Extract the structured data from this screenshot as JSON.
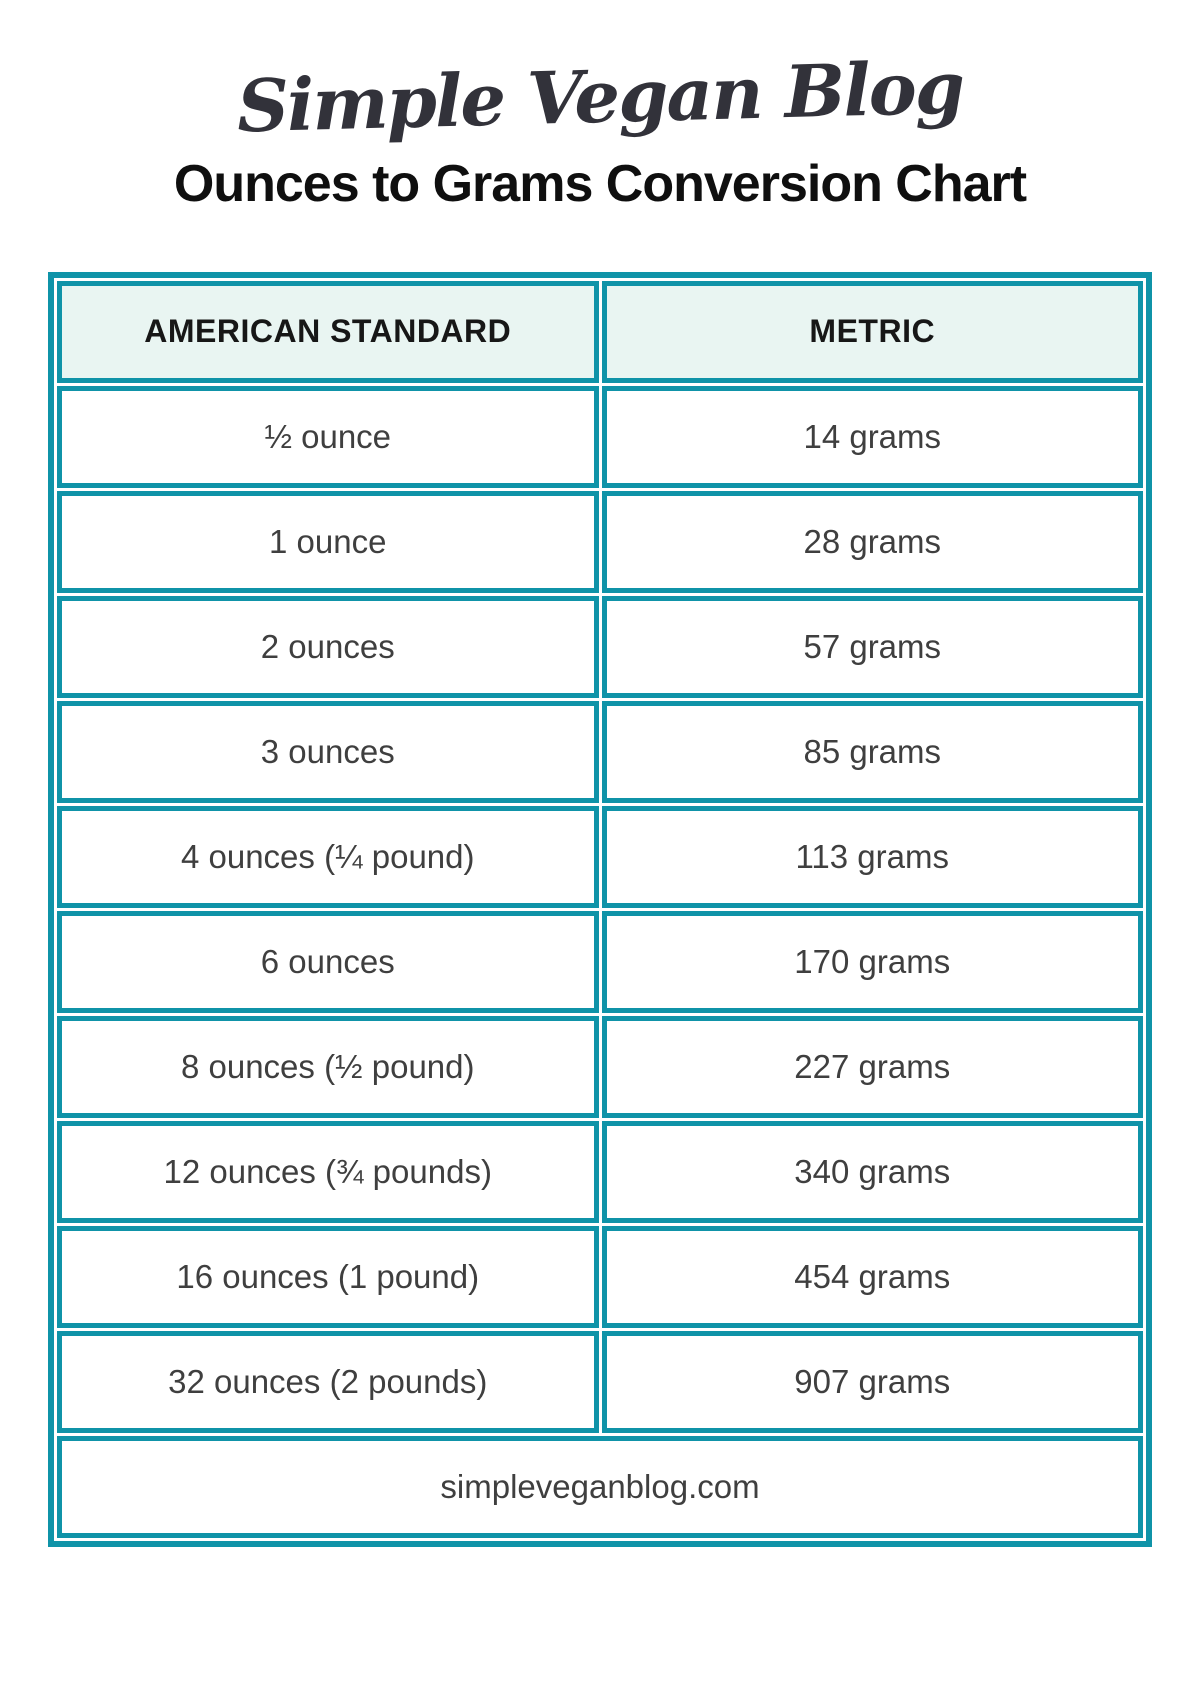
{
  "logo": {
    "text": "Simple Vegan Blog"
  },
  "title": "Ounces to Grams Conversion Chart",
  "colors": {
    "teal": "#0f93a8",
    "header_bg": "#e9f5f2",
    "row_text": "#3f3f3f",
    "title_text": "#0f0f0f",
    "logo_text": "#32323a"
  },
  "table": {
    "headers": [
      "AMERICAN STANDARD",
      "METRIC"
    ],
    "rows": [
      {
        "us": "½ ounce",
        "metric": "14 grams"
      },
      {
        "us": "1 ounce",
        "metric": "28 grams"
      },
      {
        "us": "2 ounces",
        "metric": "57 grams"
      },
      {
        "us": "3 ounces",
        "metric": "85 grams"
      },
      {
        "us": "4 ounces (¼ pound)",
        "metric": "113 grams"
      },
      {
        "us": "6 ounces",
        "metric": "170 grams"
      },
      {
        "us": "8 ounces (½ pound)",
        "metric": "227 grams"
      },
      {
        "us": "12 ounces (¾ pounds)",
        "metric": "340 grams"
      },
      {
        "us": "16 ounces (1 pound)",
        "metric": "454 grams"
      },
      {
        "us": "32 ounces (2 pounds)",
        "metric": "907 grams"
      }
    ]
  },
  "footer": {
    "website": "simpleveganblog.com"
  },
  "chart_data": {
    "type": "table",
    "title": "Ounces to Grams Conversion Chart",
    "columns": [
      "AMERICAN STANDARD",
      "METRIC"
    ],
    "rows": [
      [
        "½ ounce",
        "14 grams"
      ],
      [
        "1 ounce",
        "28 grams"
      ],
      [
        "2 ounces",
        "57 grams"
      ],
      [
        "3 ounces",
        "85 grams"
      ],
      [
        "4 ounces (¼ pound)",
        "113 grams"
      ],
      [
        "6 ounces",
        "170 grams"
      ],
      [
        "8 ounces (½ pound)",
        "227 grams"
      ],
      [
        "12 ounces (¾ pounds)",
        "340 grams"
      ],
      [
        "16 ounces (1 pound)",
        "454 grams"
      ],
      [
        "32 ounces (2 pounds)",
        "907 grams"
      ]
    ],
    "ounces": [
      0.5,
      1,
      2,
      3,
      4,
      6,
      8,
      12,
      16,
      32
    ],
    "grams": [
      14,
      28,
      57,
      85,
      113,
      170,
      227,
      340,
      454,
      907
    ],
    "source_label": "simpleveganblog.com"
  }
}
